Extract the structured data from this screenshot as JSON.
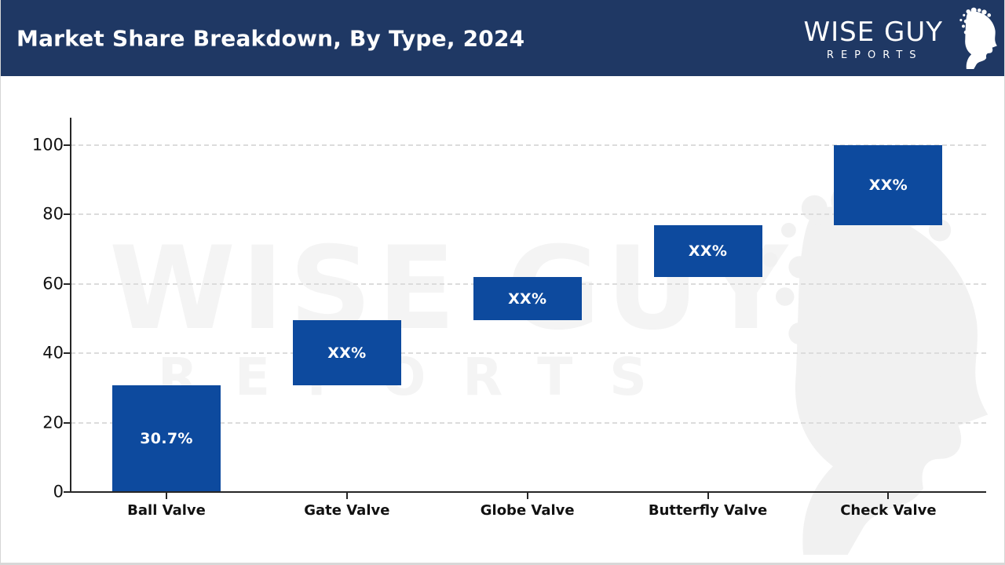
{
  "header": {
    "title": "Market Share Breakdown, By Type, 2024",
    "bg_color": "#1f3864",
    "logo": {
      "name": "WISE GUY",
      "tagline": "REPORTS"
    }
  },
  "watermark": {
    "line1": "WISE GUY",
    "line2": "REPORTS"
  },
  "chart_data": {
    "type": "bar",
    "subtype": "waterfall",
    "title": "Market Share Breakdown, By Type, 2024",
    "categories": [
      "Ball Valve",
      "Gate Valve",
      "Globe Valve",
      "Butterfly Valve",
      "Check Valve"
    ],
    "segments": [
      {
        "category": "Ball Valve",
        "start": 0,
        "end": 30.7,
        "label": "30.7%"
      },
      {
        "category": "Gate Valve",
        "start": 30.7,
        "end": 49.5,
        "label": "XX%"
      },
      {
        "category": "Globe Valve",
        "start": 49.5,
        "end": 62.0,
        "label": "XX%"
      },
      {
        "category": "Butterfly Valve",
        "start": 62.0,
        "end": 76.9,
        "label": "XX%"
      },
      {
        "category": "Check Valve",
        "start": 76.9,
        "end": 100.0,
        "label": "XX%"
      }
    ],
    "xlabel": "",
    "ylabel": "",
    "ylim": [
      0,
      105
    ],
    "yticks": [
      0,
      20,
      40,
      60,
      80,
      100
    ],
    "grid": "horizontal-dashed",
    "legend": "none",
    "bar_color": "#0d4a9e",
    "bar_label_color": "#ffffff",
    "unit": "%"
  }
}
